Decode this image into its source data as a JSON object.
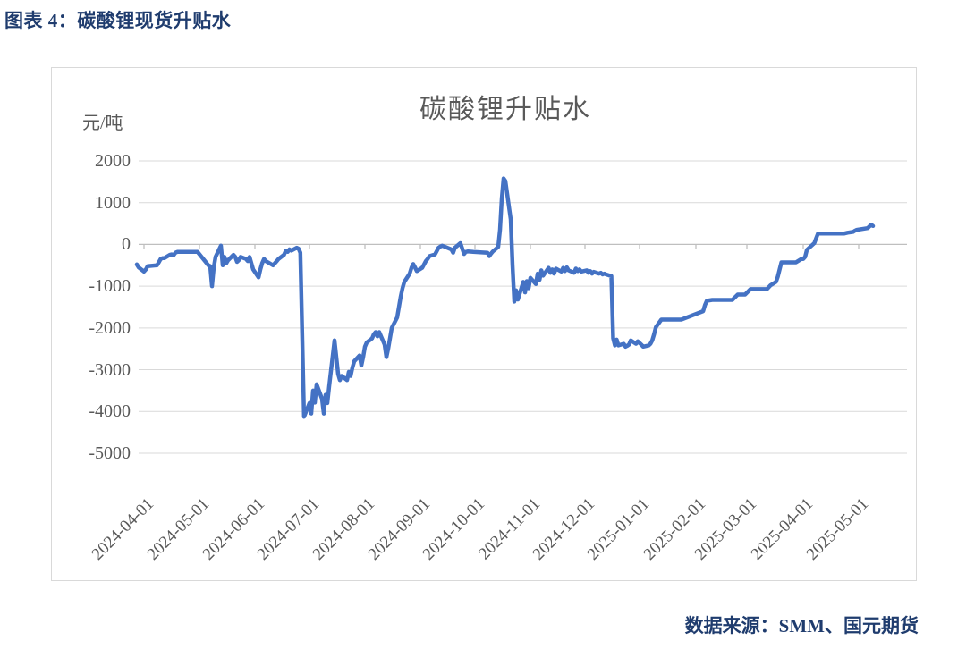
{
  "figure_caption": "图表 4：碳酸锂现货升贴水",
  "source_note": "数据来源：SMM、国元期货",
  "colors": {
    "caption_text": "#1f3c6e",
    "source_text": "#1f3c6e",
    "chart_title_text": "#595959",
    "axis_label_text": "#595959",
    "gridline": "#d9d9d9",
    "axis_line": "#bfbfbf",
    "series_line": "#4472c4",
    "chart_border": "#d9d9d9"
  },
  "chart_data": {
    "type": "line",
    "title": "碳酸锂升贴水",
    "legend": "none",
    "grid": true,
    "y_axis": {
      "unit_label": "元/吨",
      "min": -5000,
      "max": 2000,
      "ticks": [
        2000,
        1000,
        0,
        -1000,
        -2000,
        -3000,
        -4000,
        -5000
      ]
    },
    "x_axis": {
      "tick_labels": [
        "2024-04-01",
        "2024-05-01",
        "2024-06-01",
        "2024-07-01",
        "2024-08-01",
        "2024-09-01",
        "2024-10-01",
        "2024-11-01",
        "2024-12-01",
        "2025-01-01",
        "2025-02-01",
        "2025-03-01",
        "2025-04-01",
        "2025-05-01"
      ]
    },
    "series": [
      {
        "name": "碳酸锂升贴水",
        "color": "#4472c4",
        "points": [
          [
            "2024-03-28",
            -480
          ],
          [
            "2024-03-29",
            -550
          ],
          [
            "2024-04-01",
            -650
          ],
          [
            "2024-04-02",
            -600
          ],
          [
            "2024-04-03",
            -520
          ],
          [
            "2024-04-08",
            -500
          ],
          [
            "2024-04-09",
            -430
          ],
          [
            "2024-04-10",
            -350
          ],
          [
            "2024-04-11",
            -330
          ],
          [
            "2024-04-12",
            -330
          ],
          [
            "2024-04-15",
            -250
          ],
          [
            "2024-04-16",
            -240
          ],
          [
            "2024-04-17",
            -260
          ],
          [
            "2024-04-18",
            -200
          ],
          [
            "2024-04-19",
            -180
          ],
          [
            "2024-04-22",
            -180
          ],
          [
            "2024-04-24",
            -180
          ],
          [
            "2024-04-26",
            -180
          ],
          [
            "2024-04-29",
            -180
          ],
          [
            "2024-04-30",
            -180
          ],
          [
            "2024-05-06",
            -500
          ],
          [
            "2024-05-07",
            -520
          ],
          [
            "2024-05-08",
            -1000
          ],
          [
            "2024-05-09",
            -550
          ],
          [
            "2024-05-10",
            -300
          ],
          [
            "2024-05-13",
            -30
          ],
          [
            "2024-05-14",
            -500
          ],
          [
            "2024-05-15",
            -300
          ],
          [
            "2024-05-16",
            -450
          ],
          [
            "2024-05-17",
            -380
          ],
          [
            "2024-05-20",
            -250
          ],
          [
            "2024-05-21",
            -300
          ],
          [
            "2024-05-22",
            -420
          ],
          [
            "2024-05-23",
            -380
          ],
          [
            "2024-05-24",
            -300
          ],
          [
            "2024-05-27",
            -350
          ],
          [
            "2024-05-28",
            -400
          ],
          [
            "2024-05-29",
            -300
          ],
          [
            "2024-05-30",
            -450
          ],
          [
            "2024-05-31",
            -600
          ],
          [
            "2024-06-03",
            -790
          ],
          [
            "2024-06-04",
            -600
          ],
          [
            "2024-06-05",
            -450
          ],
          [
            "2024-06-06",
            -350
          ],
          [
            "2024-06-07",
            -400
          ],
          [
            "2024-06-11",
            -500
          ],
          [
            "2024-06-12",
            -450
          ],
          [
            "2024-06-13",
            -400
          ],
          [
            "2024-06-14",
            -350
          ],
          [
            "2024-06-17",
            -250
          ],
          [
            "2024-06-18",
            -150
          ],
          [
            "2024-06-19",
            -180
          ],
          [
            "2024-06-20",
            -120
          ],
          [
            "2024-06-21",
            -150
          ],
          [
            "2024-06-24",
            -80
          ],
          [
            "2024-06-25",
            -100
          ],
          [
            "2024-06-26",
            -200
          ],
          [
            "2024-06-27",
            -2200
          ],
          [
            "2024-06-28",
            -4130
          ],
          [
            "2024-07-01",
            -3800
          ],
          [
            "2024-07-02",
            -4050
          ],
          [
            "2024-07-03",
            -3500
          ],
          [
            "2024-07-04",
            -3790
          ],
          [
            "2024-07-05",
            -3350
          ],
          [
            "2024-07-08",
            -3700
          ],
          [
            "2024-07-09",
            -4050
          ],
          [
            "2024-07-10",
            -3600
          ],
          [
            "2024-07-11",
            -3800
          ],
          [
            "2024-07-12",
            -3400
          ],
          [
            "2024-07-15",
            -2300
          ],
          [
            "2024-07-16",
            -2700
          ],
          [
            "2024-07-17",
            -3100
          ],
          [
            "2024-07-18",
            -3250
          ],
          [
            "2024-07-19",
            -3150
          ],
          [
            "2024-07-22",
            -3250
          ],
          [
            "2024-07-23",
            -3050
          ],
          [
            "2024-07-24",
            -3150
          ],
          [
            "2024-07-25",
            -2950
          ],
          [
            "2024-07-26",
            -2800
          ],
          [
            "2024-07-29",
            -2660
          ],
          [
            "2024-07-30",
            -2900
          ],
          [
            "2024-07-31",
            -2700
          ],
          [
            "2024-08-01",
            -2450
          ],
          [
            "2024-08-02",
            -2350
          ],
          [
            "2024-08-05",
            -2250
          ],
          [
            "2024-08-06",
            -2150
          ],
          [
            "2024-08-07",
            -2100
          ],
          [
            "2024-08-08",
            -2200
          ],
          [
            "2024-08-09",
            -2100
          ],
          [
            "2024-08-12",
            -2400
          ],
          [
            "2024-08-13",
            -2700
          ],
          [
            "2024-08-14",
            -2500
          ],
          [
            "2024-08-15",
            -2250
          ],
          [
            "2024-08-16",
            -2000
          ],
          [
            "2024-08-19",
            -1750
          ],
          [
            "2024-08-20",
            -1500
          ],
          [
            "2024-08-21",
            -1250
          ],
          [
            "2024-08-22",
            -1050
          ],
          [
            "2024-08-23",
            -900
          ],
          [
            "2024-08-26",
            -700
          ],
          [
            "2024-08-27",
            -560
          ],
          [
            "2024-08-28",
            -470
          ],
          [
            "2024-08-29",
            -550
          ],
          [
            "2024-08-30",
            -640
          ],
          [
            "2024-09-02",
            -560
          ],
          [
            "2024-09-03",
            -480
          ],
          [
            "2024-09-04",
            -400
          ],
          [
            "2024-09-05",
            -350
          ],
          [
            "2024-09-06",
            -280
          ],
          [
            "2024-09-09",
            -240
          ],
          [
            "2024-09-10",
            -160
          ],
          [
            "2024-09-11",
            -80
          ],
          [
            "2024-09-12",
            -50
          ],
          [
            "2024-09-13",
            -30
          ],
          [
            "2024-09-18",
            -120
          ],
          [
            "2024-09-19",
            -200
          ],
          [
            "2024-09-20",
            -80
          ],
          [
            "2024-09-23",
            30
          ],
          [
            "2024-09-24",
            -100
          ],
          [
            "2024-09-25",
            -230
          ],
          [
            "2024-09-26",
            -180
          ],
          [
            "2024-09-27",
            -170
          ],
          [
            "2024-09-30",
            -180
          ],
          [
            "2024-10-08",
            -200
          ],
          [
            "2024-10-09",
            -280
          ],
          [
            "2024-10-10",
            -220
          ],
          [
            "2024-10-11",
            -170
          ],
          [
            "2024-10-14",
            -60
          ],
          [
            "2024-10-15",
            350
          ],
          [
            "2024-10-16",
            1100
          ],
          [
            "2024-10-17",
            1580
          ],
          [
            "2024-10-18",
            1520
          ],
          [
            "2024-10-21",
            600
          ],
          [
            "2024-10-22",
            -500
          ],
          [
            "2024-10-23",
            -1370
          ],
          [
            "2024-10-24",
            -1100
          ],
          [
            "2024-10-25",
            -1320
          ],
          [
            "2024-10-28",
            -900
          ],
          [
            "2024-10-29",
            -1150
          ],
          [
            "2024-10-30",
            -880
          ],
          [
            "2024-10-31",
            -1050
          ],
          [
            "2024-11-01",
            -800
          ],
          [
            "2024-11-04",
            -950
          ],
          [
            "2024-11-05",
            -700
          ],
          [
            "2024-11-06",
            -850
          ],
          [
            "2024-11-07",
            -620
          ],
          [
            "2024-11-08",
            -750
          ],
          [
            "2024-11-11",
            -560
          ],
          [
            "2024-11-12",
            -680
          ],
          [
            "2024-11-13",
            -600
          ],
          [
            "2024-11-14",
            -700
          ],
          [
            "2024-11-15",
            -580
          ],
          [
            "2024-11-18",
            -650
          ],
          [
            "2024-11-19",
            -560
          ],
          [
            "2024-11-20",
            -640
          ],
          [
            "2024-11-21",
            -550
          ],
          [
            "2024-11-22",
            -620
          ],
          [
            "2024-11-25",
            -680
          ],
          [
            "2024-11-26",
            -580
          ],
          [
            "2024-11-27",
            -640
          ],
          [
            "2024-11-28",
            -600
          ],
          [
            "2024-11-29",
            -650
          ],
          [
            "2024-12-02",
            -620
          ],
          [
            "2024-12-03",
            -680
          ],
          [
            "2024-12-04",
            -640
          ],
          [
            "2024-12-05",
            -700
          ],
          [
            "2024-12-06",
            -660
          ],
          [
            "2024-12-09",
            -700
          ],
          [
            "2024-12-10",
            -680
          ],
          [
            "2024-12-11",
            -720
          ],
          [
            "2024-12-12",
            -700
          ],
          [
            "2024-12-13",
            -720
          ],
          [
            "2024-12-16",
            -760
          ],
          [
            "2024-12-17",
            -2250
          ],
          [
            "2024-12-18",
            -2420
          ],
          [
            "2024-12-19",
            -2280
          ],
          [
            "2024-12-20",
            -2420
          ],
          [
            "2024-12-23",
            -2380
          ],
          [
            "2024-12-24",
            -2450
          ],
          [
            "2024-12-25",
            -2430
          ],
          [
            "2024-12-26",
            -2400
          ],
          [
            "2024-12-27",
            -2300
          ],
          [
            "2024-12-30",
            -2380
          ],
          [
            "2024-12-31",
            -2320
          ],
          [
            "2025-01-02",
            -2400
          ],
          [
            "2025-01-03",
            -2450
          ],
          [
            "2025-01-06",
            -2420
          ],
          [
            "2025-01-07",
            -2380
          ],
          [
            "2025-01-08",
            -2300
          ],
          [
            "2025-01-09",
            -2150
          ],
          [
            "2025-01-10",
            -1980
          ],
          [
            "2025-01-13",
            -1800
          ],
          [
            "2025-01-15",
            -1800
          ],
          [
            "2025-01-17",
            -1800
          ],
          [
            "2025-01-20",
            -1800
          ],
          [
            "2025-01-22",
            -1800
          ],
          [
            "2025-01-24",
            -1800
          ],
          [
            "2025-02-05",
            -1600
          ],
          [
            "2025-02-06",
            -1450
          ],
          [
            "2025-02-07",
            -1350
          ],
          [
            "2025-02-10",
            -1330
          ],
          [
            "2025-02-12",
            -1330
          ],
          [
            "2025-02-14",
            -1330
          ],
          [
            "2025-02-17",
            -1330
          ],
          [
            "2025-02-19",
            -1330
          ],
          [
            "2025-02-21",
            -1330
          ],
          [
            "2025-02-24",
            -1200
          ],
          [
            "2025-02-26",
            -1200
          ],
          [
            "2025-02-28",
            -1200
          ],
          [
            "2025-03-03",
            -1070
          ],
          [
            "2025-03-05",
            -1070
          ],
          [
            "2025-03-07",
            -1070
          ],
          [
            "2025-03-10",
            -1070
          ],
          [
            "2025-03-12",
            -1070
          ],
          [
            "2025-03-14",
            -980
          ],
          [
            "2025-03-17",
            -900
          ],
          [
            "2025-03-18",
            -780
          ],
          [
            "2025-03-19",
            -600
          ],
          [
            "2025-03-20",
            -430
          ],
          [
            "2025-03-24",
            -430
          ],
          [
            "2025-03-26",
            -430
          ],
          [
            "2025-03-28",
            -430
          ],
          [
            "2025-03-31",
            -350
          ],
          [
            "2025-04-01",
            -350
          ],
          [
            "2025-04-02",
            -300
          ],
          [
            "2025-04-03",
            -130
          ],
          [
            "2025-04-07",
            30
          ],
          [
            "2025-04-08",
            150
          ],
          [
            "2025-04-09",
            260
          ],
          [
            "2025-04-11",
            260
          ],
          [
            "2025-04-15",
            260
          ],
          [
            "2025-04-17",
            260
          ],
          [
            "2025-04-21",
            260
          ],
          [
            "2025-04-23",
            260
          ],
          [
            "2025-04-25",
            280
          ],
          [
            "2025-04-28",
            300
          ],
          [
            "2025-04-29",
            330
          ],
          [
            "2025-04-30",
            350
          ],
          [
            "2025-05-06",
            390
          ],
          [
            "2025-05-07",
            430
          ],
          [
            "2025-05-08",
            470
          ],
          [
            "2025-05-09",
            440
          ]
        ]
      }
    ]
  }
}
